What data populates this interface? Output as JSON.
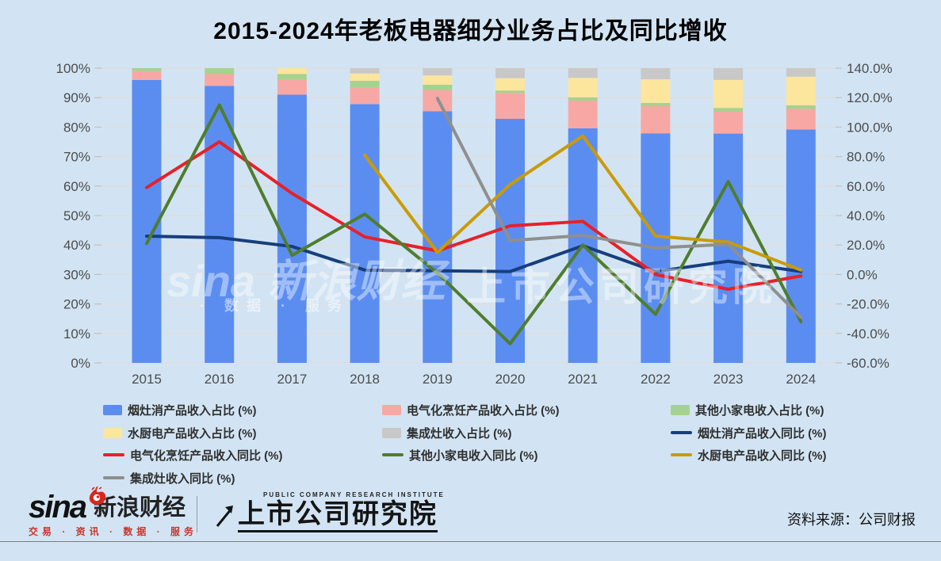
{
  "title": "2015-2024年老板电器细分业务占比及同比增收",
  "chart_data": {
    "type": "combo-stacked-bar-line",
    "categories": [
      "2015",
      "2016",
      "2017",
      "2018",
      "2019",
      "2020",
      "2021",
      "2022",
      "2023",
      "2024"
    ],
    "left_axis": {
      "min": 0,
      "max": 100,
      "step": 10,
      "tick_labels_top_to_bottom": [
        "100%",
        "90%",
        "80%",
        "70%",
        "60%",
        "50%",
        "40%",
        "30%",
        "20%",
        "10%",
        "0%"
      ]
    },
    "right_axis": {
      "min": -60,
      "max": 140,
      "step": 20,
      "tick_labels_top_to_bottom": [
        "140.0%",
        "120.0%",
        "100.0%",
        "80.0%",
        "60.0%",
        "40.0%",
        "20.0%",
        "0.0%",
        "-20.0%",
        "-40.0%",
        "-60.0%"
      ]
    },
    "grid": true,
    "legend_position": "bottom",
    "bar_series": [
      {
        "key": "hood-stove-share",
        "name": "烟灶消产品收入占比 (%)",
        "color": "#5b8df1",
        "values": [
          96,
          94,
          91,
          87.8,
          85.4,
          82.8,
          79.6,
          77.9,
          77.8,
          79.2
        ]
      },
      {
        "key": "electric-cooking-share",
        "name": "电气化烹饪产品收入占比 (%)",
        "color": "#f7a8a4",
        "values": [
          3,
          4,
          5,
          5.5,
          7.2,
          8.8,
          9.4,
          9.2,
          7.4,
          7.0
        ]
      },
      {
        "key": "other-small-appliance-share",
        "name": "其他小家电收入占比 (%)",
        "color": "#a6d28f",
        "values": [
          1,
          2,
          2,
          2.4,
          1.8,
          0.8,
          1.1,
          1.1,
          1.3,
          1.2
        ]
      },
      {
        "key": "kitchen-water-share",
        "name": "水厨电产品收入占比 (%)",
        "color": "#fce59d",
        "values": [
          0,
          0,
          2,
          2.5,
          3.1,
          4.2,
          6.6,
          8.0,
          9.5,
          9.7
        ]
      },
      {
        "key": "integrated-stove-share",
        "name": "集成灶收入占比 (%)",
        "color": "#c8c8c8",
        "values": [
          0,
          0,
          0,
          1.8,
          2.5,
          3.4,
          3.3,
          3.8,
          4.0,
          2.9
        ]
      }
    ],
    "line_series": [
      {
        "key": "hood-stove-yoy",
        "name": "烟灶消产品收入同比 (%)",
        "color": "#173e7c",
        "values": [
          26,
          25,
          19,
          3,
          2.5,
          2,
          19.5,
          2,
          9,
          2
        ]
      },
      {
        "key": "electric-cooking-yoy",
        "name": "电气化烹饪产品收入同比 (%)",
        "color": "#e62129",
        "values": [
          59,
          90,
          55,
          25.5,
          16,
          33,
          36,
          0,
          -10,
          -1
        ]
      },
      {
        "key": "other-small-appliance-yoy",
        "name": "其他小家电收入同比 (%)",
        "color": "#4f7d2c",
        "values": [
          21,
          115,
          13,
          41,
          1,
          -47,
          20,
          -27,
          63,
          -32
        ]
      },
      {
        "key": "kitchen-water-yoy",
        "name": "水厨电产品收入同比 (%)",
        "color": "#c99b08",
        "values": [
          null,
          null,
          null,
          81,
          15,
          61,
          94,
          26,
          22,
          3
        ]
      },
      {
        "key": "integrated-stove-yoy",
        "name": "集成灶收入同比 (%)",
        "color": "#8f8f8f",
        "values": [
          null,
          null,
          null,
          null,
          119.5,
          23,
          26.5,
          18,
          20.5,
          -29
        ]
      }
    ]
  },
  "watermarks": {
    "sina": "sina 新浪财经",
    "institute": "上市公司研究院",
    "tagline": "· 数据 · 服务"
  },
  "footer": {
    "sina_word": "sina",
    "sina_brand": "新浪财经",
    "sina_tagline": "交易 · 资讯 · 数据 · 服务",
    "institute_en": "PUBLIC COMPANY RESEARCH INSTITUTE",
    "institute_cn": "上市公司研究院",
    "source_label": "资料来源：公司财报"
  },
  "colors": {
    "background": "#d2e4f3",
    "gridline": "#e3dbd8",
    "axis_text": "#4c4c4c",
    "title_text": "#000000"
  }
}
